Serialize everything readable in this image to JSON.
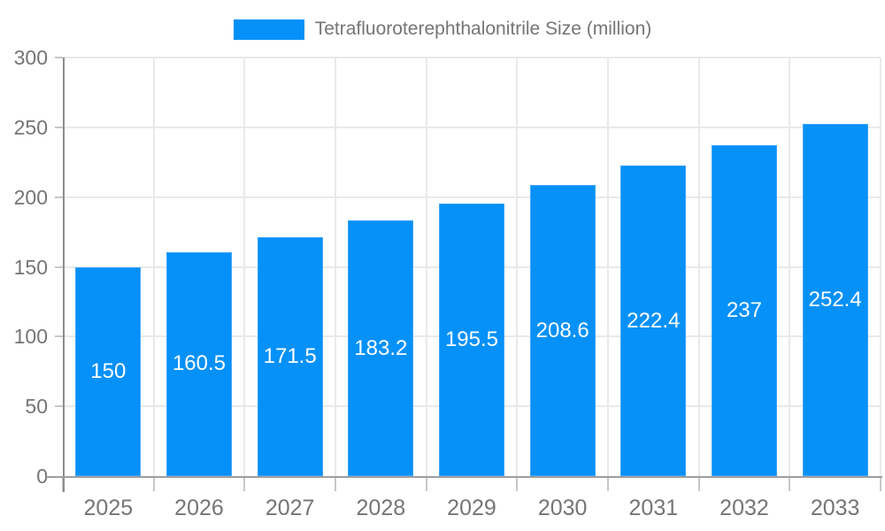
{
  "chart_data": {
    "type": "bar",
    "title": "Tetrafluoroterephthalonitrile Size (million)",
    "categories": [
      "2025",
      "2026",
      "2027",
      "2028",
      "2029",
      "2030",
      "2031",
      "2032",
      "2033"
    ],
    "series": [
      {
        "name": "Tetrafluoroterephthalonitrile Size (million)",
        "values": [
          150,
          160.5,
          171.5,
          183.2,
          195.5,
          208.6,
          222.4,
          237,
          252.4
        ],
        "value_labels": [
          "150",
          "160.5",
          "171.5",
          "183.2",
          "195.5",
          "208.6",
          "222.4",
          "237",
          "252.4"
        ],
        "color": "#0591f8"
      }
    ],
    "xlabel": "",
    "ylabel": "",
    "ylim": [
      0,
      300
    ],
    "yticks": [
      0,
      50,
      100,
      150,
      200,
      250,
      300
    ],
    "grid": true,
    "legend_position": "top-center",
    "colors": {
      "bar": "#0591f8",
      "bar_border": "#3ea4f9",
      "bar_label": "#ffffff",
      "axis_text": "#757575",
      "gridline": "#e9e9e9",
      "axis_line": "#9e9e9e",
      "y_axis_line": "#8c8c8c",
      "tick": "#c7c7c7",
      "background": "#ffffff"
    }
  }
}
